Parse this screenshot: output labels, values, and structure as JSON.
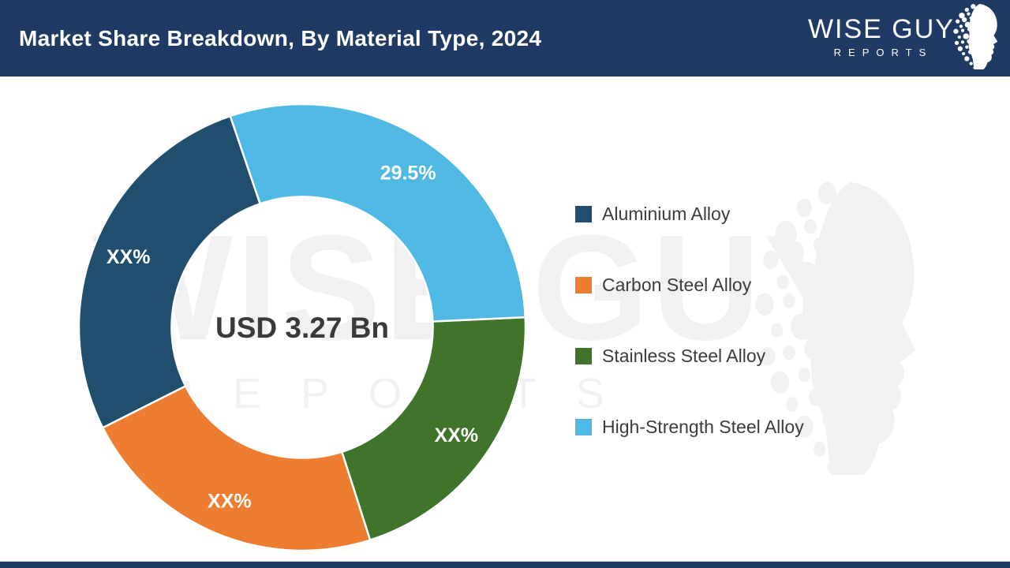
{
  "header": {
    "title": "Market Share Breakdown, By Material Type, 2024"
  },
  "brand": {
    "name": "WISE GUY",
    "tagline": "REPORTS"
  },
  "watermark": {
    "big": "WISE GUY",
    "small": "REPORTS"
  },
  "chart_data": {
    "type": "pie",
    "subtype": "donut",
    "title": "Market Share Breakdown, By Material Type, 2024",
    "center_label": "USD 3.27 Bn",
    "unit": "%",
    "legend_position": "right",
    "start_angle_deg": -18.8,
    "inner_radius_ratio": 0.585,
    "label_radius": 238,
    "draw_order": [
      3,
      2,
      1,
      0
    ],
    "segments": [
      {
        "label": "Aluminium Alloy",
        "display_value": "XX%",
        "pct_est": 27.2,
        "color": "#1F4E6F"
      },
      {
        "label": "Carbon Steel Alloy",
        "display_value": "XX%",
        "pct_est": 22.5,
        "color": "#ED7D31"
      },
      {
        "label": "Stainless Steel Alloy",
        "display_value": "XX%",
        "pct_est": 20.8,
        "color": "#41742B"
      },
      {
        "label": "High-Strength Steel Alloy",
        "display_value": "29.5%",
        "pct_est": 29.5,
        "color": "#4FB8E3"
      }
    ]
  },
  "colors": {
    "header_bg": "#203A66",
    "footer_bg": "#203A66",
    "watermark": "#F1F1F4",
    "center_text": "#3A3A3A",
    "legend_text": "#3C3C3C",
    "slice_label": "#FFFFFF"
  }
}
